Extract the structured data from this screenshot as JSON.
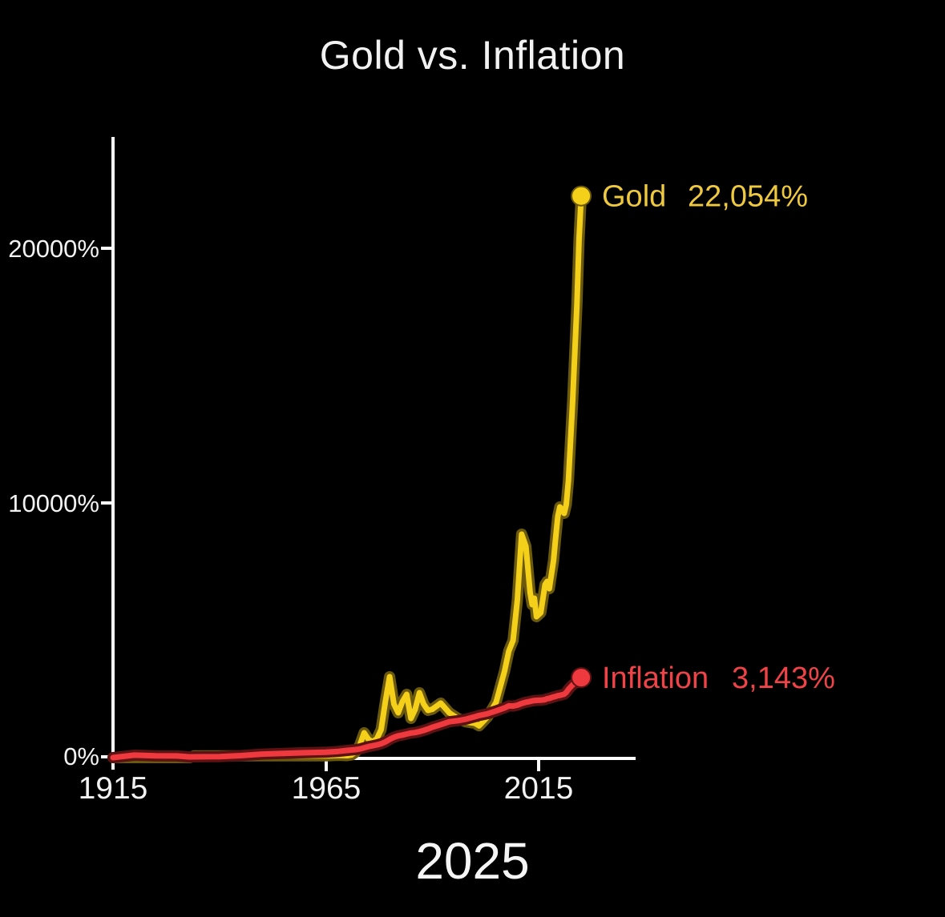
{
  "chart_data": {
    "type": "line",
    "title": "Gold vs. Inflation",
    "current_year": "2025",
    "background_color": "#000000",
    "axis_color": "#fcfcfc",
    "grid": false,
    "legend_position": "end-of-line",
    "xlim": [
      1915,
      2037
    ],
    "ylim": [
      0,
      24371
    ],
    "xticks": [
      {
        "label": "1915",
        "value": 1915
      },
      {
        "label": "1965",
        "value": 1965
      },
      {
        "label": "2015",
        "value": 2015
      }
    ],
    "yticks": [
      {
        "label": "0%",
        "value": 0
      },
      {
        "label": "10000%",
        "value": 10000
      },
      {
        "label": "20000%",
        "value": 20000
      }
    ],
    "x": [
      1915,
      1920,
      1925,
      1930,
      1933,
      1934,
      1940,
      1945,
      1950,
      1955,
      1960,
      1965,
      1968,
      1970,
      1971,
      1972,
      1973,
      1974,
      1975,
      1976,
      1977,
      1978,
      1979,
      1980,
      1981,
      1982,
      1983,
      1984,
      1985,
      1986,
      1987,
      1988,
      1989,
      1990,
      1992,
      1994,
      1996,
      1998,
      2000,
      2001,
      2003,
      2005,
      2007,
      2008,
      2009,
      2010,
      2011,
      2012,
      2013,
      2013.5,
      2014,
      2014.5,
      2015.5,
      2016.5,
      2017,
      2017.5,
      2018.5,
      2019,
      2019.5,
      2020,
      2021,
      2021.5,
      2022,
      2023,
      2024,
      2024.5,
      2025
    ],
    "series": [
      {
        "name": "Gold",
        "end_label": "22,054%",
        "end_value": 22054,
        "color": "#f4d01b",
        "outline_color": "#6b590d",
        "label_color": "#eec83e",
        "values": [
          0,
          0,
          0,
          0,
          0,
          69,
          69,
          69,
          69,
          69,
          69,
          70,
          90,
          78,
          105,
          220,
          500,
          975,
          720,
          615,
          745,
          1100,
          2200,
          3176,
          2100,
          1761,
          2200,
          2484,
          1541,
          1900,
          2547,
          2100,
          1855,
          1900,
          2138,
          1761,
          1541,
          1400,
          1352,
          1250,
          1600,
          2170,
          3400,
          4182,
          4600,
          6200,
          8774,
          8300,
          6478,
          6006,
          6258,
          5535,
          5692,
          6792,
          6918,
          6635,
          7736,
          8616,
          9465,
          9843,
          9591,
          9937,
          10881,
          14025,
          17799,
          20314,
          22054
        ]
      },
      {
        "name": "Inflation",
        "end_label": "3,143%",
        "end_value": 3143,
        "color": "#ee393f",
        "outline_color": "#5c1212",
        "label_color": "#ef4348",
        "values": [
          0,
          98,
          73,
          65,
          28,
          33,
          39,
          78,
          138,
          165,
          193,
          212,
          244,
          284,
          300,
          313,
          339,
          387,
          433,
          464,
          500,
          546,
          617,
          716,
          800,
          855,
          886,
          929,
          965,
          984,
          1023,
          1070,
          1127,
          1193,
          1296,
          1409,
          1451,
          1514,
          1605,
          1653,
          1722,
          1834,
          1952,
          2032,
          2024,
          2059,
          2127,
          2173,
          2207,
          2225,
          2243,
          2250,
          2254,
          2276,
          2316,
          2326,
          2385,
          2402,
          2434,
          2444,
          2490,
          2563,
          2683,
          2862,
          2953,
          3009,
          3143
        ]
      }
    ]
  }
}
